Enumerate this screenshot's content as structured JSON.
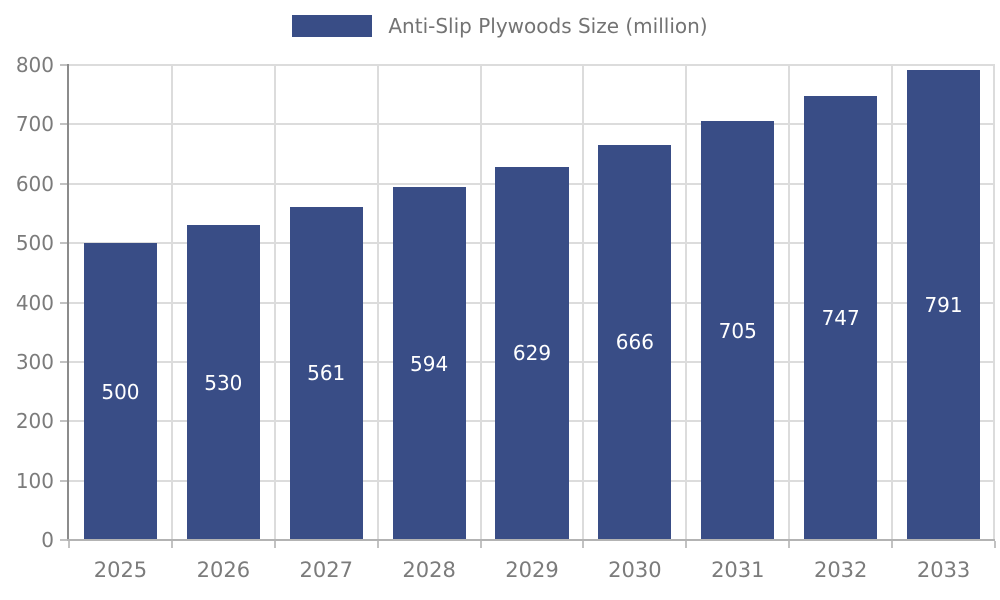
{
  "chart_data": {
    "type": "bar",
    "title": "Anti-Slip Plywoods Size (million)",
    "categories": [
      "2025",
      "2026",
      "2027",
      "2028",
      "2029",
      "2030",
      "2031",
      "2032",
      "2033"
    ],
    "values": [
      500,
      530,
      561,
      594,
      629,
      666,
      705,
      747,
      791
    ],
    "xlabel": "",
    "ylabel": "",
    "ylim": [
      0,
      800
    ],
    "yticks": [
      0,
      100,
      200,
      300,
      400,
      500,
      600,
      700,
      800
    ],
    "grid": true,
    "legend_position": "top-center",
    "value_labels": "inside-bar-centered",
    "colors": {
      "bar": "#394D86",
      "value_label": "#FFFFFF",
      "tick_text": "#7B7B7B",
      "legend_text": "#737373",
      "gridline": "#DCDCDC",
      "y_axis_line": "#8C8C8C",
      "x_axis_line": "#B3B3B3",
      "tick_mark": "#C2C2C2",
      "background": "#FFFFFF"
    }
  },
  "legend": {
    "label": "Anti-Slip Plywoods Size (million)"
  }
}
